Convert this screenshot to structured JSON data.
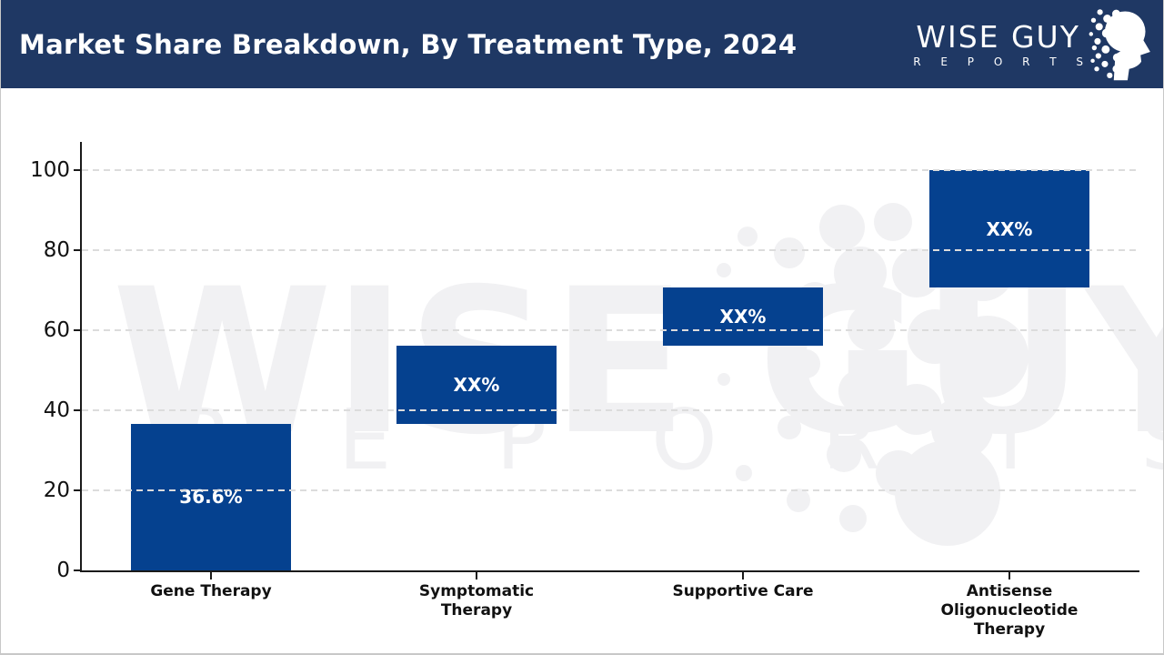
{
  "header": {
    "title": "Market Share Breakdown, By Treatment Type, 2024",
    "logo": {
      "wordmark": "WISE GUY",
      "subtitle": "R E P O R T S"
    }
  },
  "watermark": {
    "wordmark": "WISE GUY",
    "subtitle": "R E P O R T S"
  },
  "colors": {
    "brand_navy": "#1f3864",
    "bar_blue": "#05418f",
    "grid_gray": "#dcdcdc",
    "watermark_gray": "#f1f1f3"
  },
  "chart_data": {
    "type": "bar",
    "subtype": "floating-segment-waterfall",
    "title": "Market Share Breakdown, By Treatment Type, 2024",
    "xlabel": "",
    "ylabel": "",
    "ylim": [
      0,
      100
    ],
    "yticks": [
      0,
      20,
      40,
      60,
      80,
      100
    ],
    "grid": "horizontal-dashed",
    "legend": "none",
    "bar_color": "#05418f",
    "value_label_color": "#ffffff",
    "categories": [
      "Gene Therapy",
      "Symptomatic Therapy",
      "Supportive Care",
      "Antisense Oligonucleotide Therapy"
    ],
    "tick_label_lines": [
      [
        "Gene Therapy"
      ],
      [
        "Symptomatic",
        "Therapy"
      ],
      [
        "Supportive Care"
      ],
      [
        "Antisense",
        "Oligonucleotide",
        "Therapy"
      ]
    ],
    "bars": [
      {
        "category": "Gene Therapy",
        "from": 0,
        "to": 36.6,
        "label": "36.6%"
      },
      {
        "category": "Symptomatic Therapy",
        "from": 36.6,
        "to": 56.1,
        "label": "XX%"
      },
      {
        "category": "Supportive Care",
        "from": 56.1,
        "to": 70.6,
        "label": "XX%"
      },
      {
        "category": "Antisense Oligonucleotide Therapy",
        "from": 70.6,
        "to": 100,
        "label": "XX%"
      }
    ]
  }
}
